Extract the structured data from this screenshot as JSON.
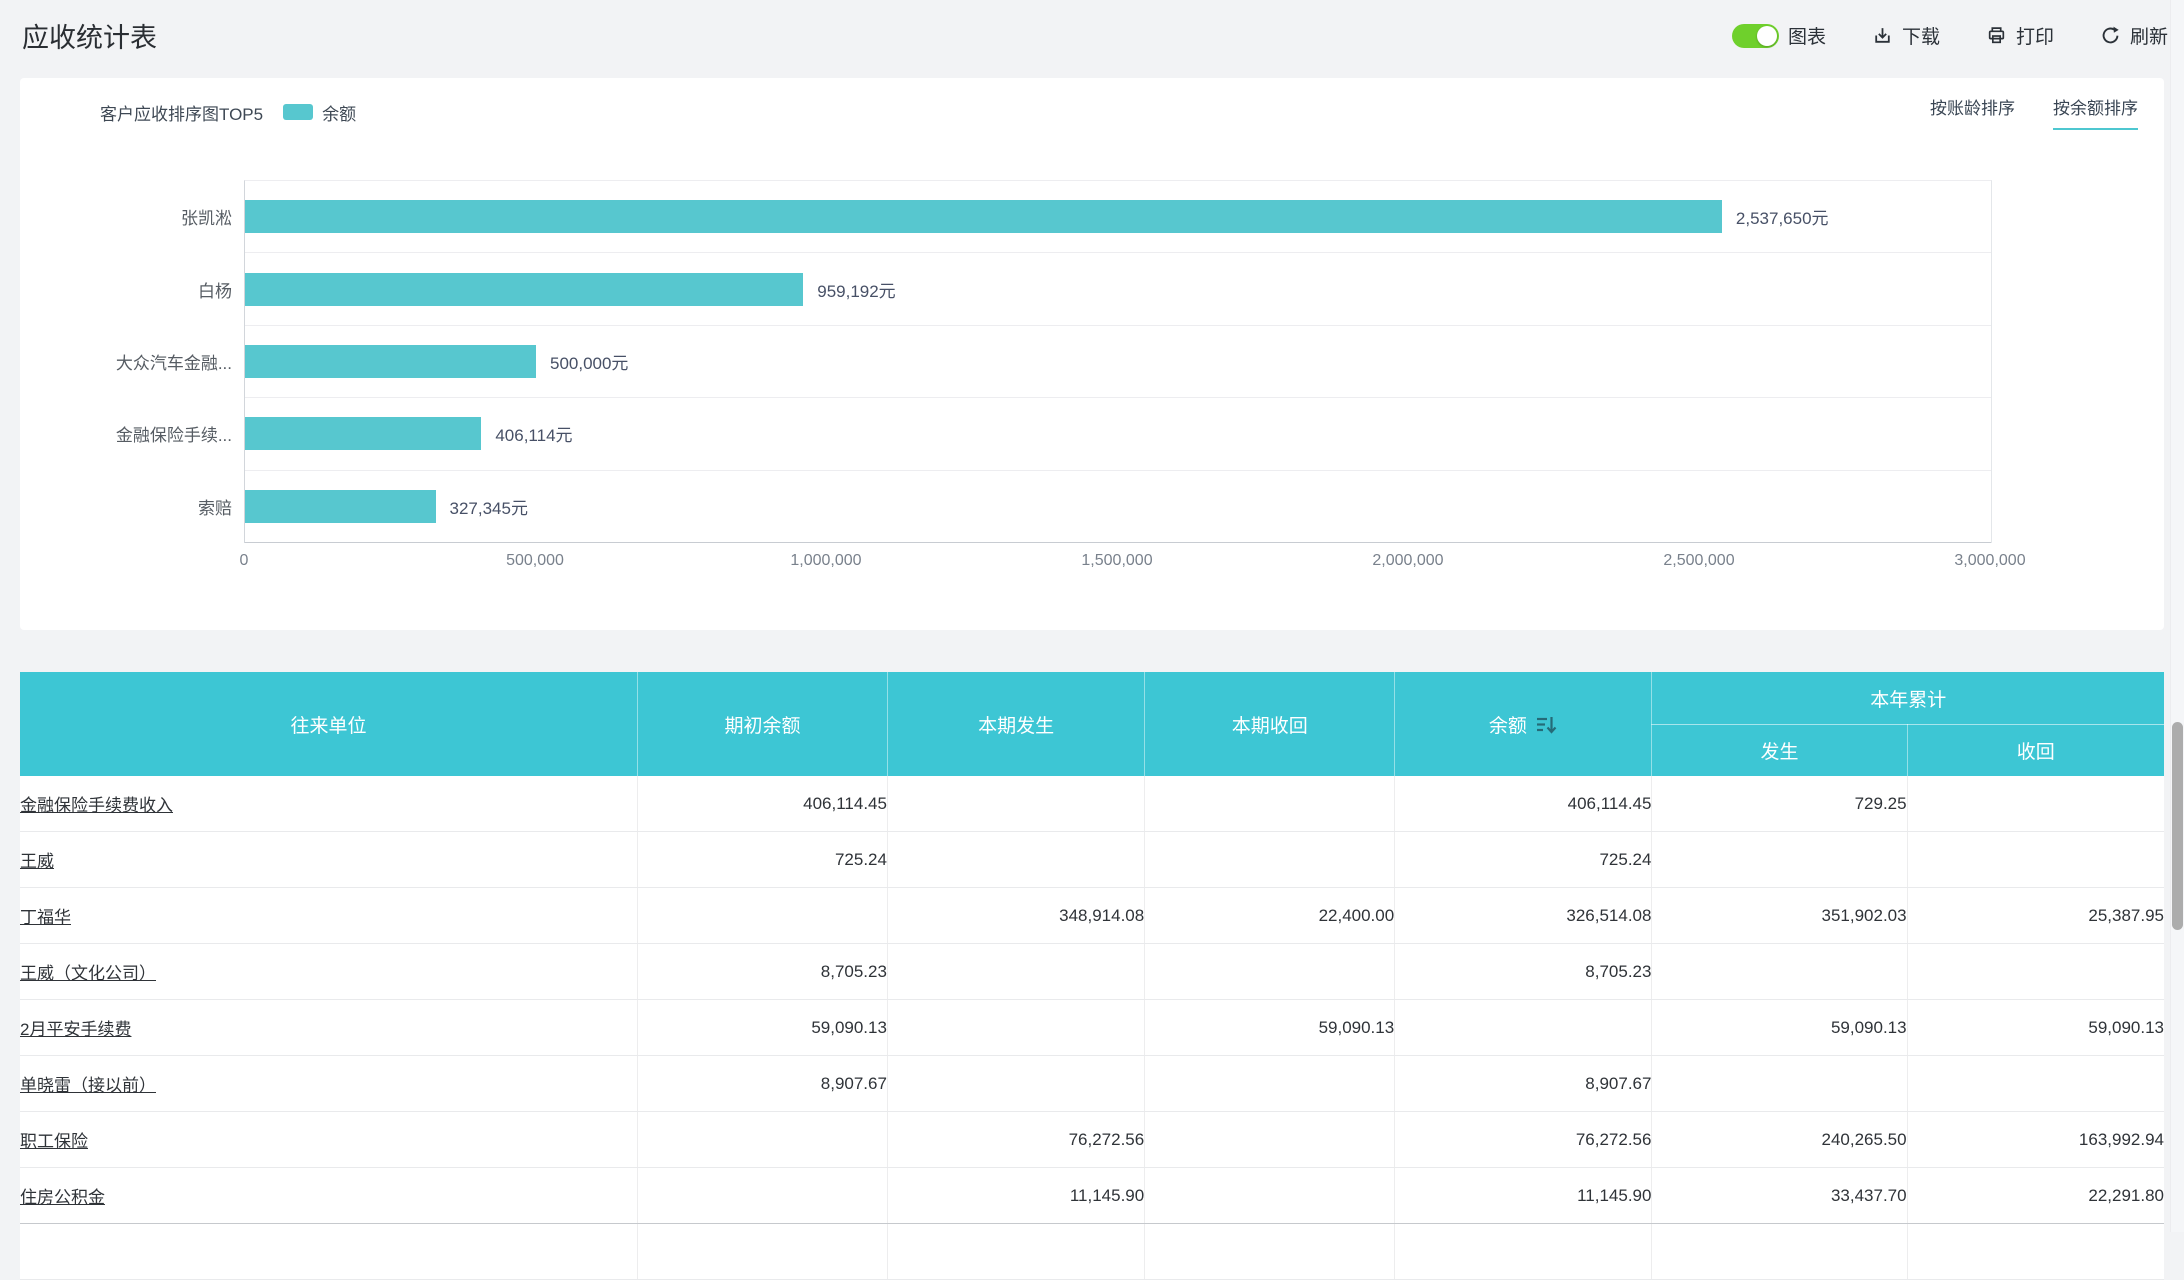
{
  "page": {
    "title": "应收统计表"
  },
  "toolbar": {
    "chart_toggle_label": "图表",
    "toggle_on": true,
    "download_label": "下载",
    "print_label": "打印",
    "refresh_label": "刷新"
  },
  "chart": {
    "title": "客户应收排序图TOP5",
    "legend_label": "余额",
    "tabs": [
      {
        "label": "按账龄排序",
        "active": false
      },
      {
        "label": "按余额排序",
        "active": true
      }
    ]
  },
  "chart_data": {
    "type": "bar",
    "orientation": "horizontal",
    "title": "客户应收排序图TOP5",
    "legend": [
      "余额"
    ],
    "legend_position": "top-left",
    "categories": [
      "张凯淞",
      "白杨",
      "大众汽车金融...",
      "金融保险手续...",
      "索赔"
    ],
    "values": [
      2537650,
      959192,
      500000,
      406114,
      327345
    ],
    "value_labels": [
      "2,537,650元",
      "959,192元",
      "500,000元",
      "406,114元",
      "327,345元"
    ],
    "xlim": [
      0,
      3000000
    ],
    "x_ticks": [
      "0",
      "500,000",
      "1,000,000",
      "1,500,000",
      "2,000,000",
      "2,500,000",
      "3,000,000"
    ],
    "bar_color": "#57c7cf",
    "grid": "row-separators"
  },
  "table": {
    "columns": [
      "往来单位",
      "期初余额",
      "本期发生",
      "本期收回",
      "余额"
    ],
    "group_header": "本年累计",
    "group_columns": [
      "发生",
      "收回"
    ],
    "sort_column": "余额",
    "sort_direction": "desc",
    "rows": [
      {
        "name": "金融保险手续费收入",
        "values": [
          "406,114.45",
          "",
          "",
          "406,114.45",
          "729.25",
          ""
        ]
      },
      {
        "name": "王威",
        "values": [
          "725.24",
          "",
          "",
          "725.24",
          "",
          ""
        ]
      },
      {
        "name": "丁福华",
        "values": [
          "",
          "348,914.08",
          "22,400.00",
          "326,514.08",
          "351,902.03",
          "25,387.95"
        ]
      },
      {
        "name": "王威（文化公司）",
        "values": [
          "8,705.23",
          "",
          "",
          "8,705.23",
          "",
          ""
        ]
      },
      {
        "name": "2月平安手续费",
        "values": [
          "59,090.13",
          "",
          "59,090.13",
          "",
          "59,090.13",
          "59,090.13"
        ]
      },
      {
        "name": "单晓雷（接以前）",
        "values": [
          "8,907.67",
          "",
          "",
          "8,907.67",
          "",
          ""
        ]
      },
      {
        "name": "职工保险",
        "values": [
          "",
          "76,272.56",
          "",
          "76,272.56",
          "240,265.50",
          "163,992.94"
        ]
      },
      {
        "name": "住房公积金",
        "values": [
          "",
          "11,145.90",
          "",
          "11,145.90",
          "33,437.70",
          "22,291.80"
        ]
      },
      {
        "name": "",
        "values": [
          "",
          "",
          "",
          "",
          "",
          ""
        ]
      }
    ]
  },
  "colors": {
    "accent_teal": "#3dc6d4",
    "bar_teal": "#57c7cf",
    "toggle_green": "#6fd02c",
    "page_bg": "#f2f3f5"
  }
}
